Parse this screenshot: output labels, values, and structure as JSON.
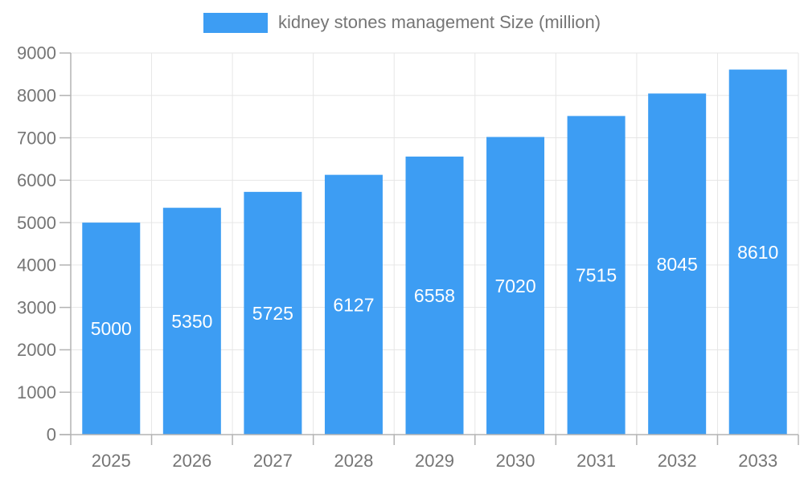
{
  "legend": {
    "label": "kidney stones management Size (million)"
  },
  "colors": {
    "bar": "#3D9DF3",
    "grid": "#E6E6E6",
    "axis": "#B3B3B3",
    "tick_label": "#757575",
    "bar_label": "#FFFFFF",
    "background": "#FFFFFF"
  },
  "chart_data": {
    "type": "bar",
    "title": "kidney stones management Size (million)",
    "categories": [
      "2025",
      "2026",
      "2027",
      "2028",
      "2029",
      "2030",
      "2031",
      "2032",
      "2033"
    ],
    "series": [
      {
        "name": "kidney stones management Size (million)",
        "color": "#3D9DF3",
        "values": [
          5000,
          5350,
          5725,
          6127,
          6558,
          7020,
          7515,
          8045,
          8610
        ]
      }
    ],
    "xlabel": "",
    "ylabel": "",
    "ylim": [
      0,
      9000
    ],
    "ytick_step": 1000,
    "yticks": [
      0,
      1000,
      2000,
      3000,
      4000,
      5000,
      6000,
      7000,
      8000,
      9000
    ],
    "grid": true,
    "legend_position": "top",
    "bar_value_labels": "inside-center-white"
  }
}
